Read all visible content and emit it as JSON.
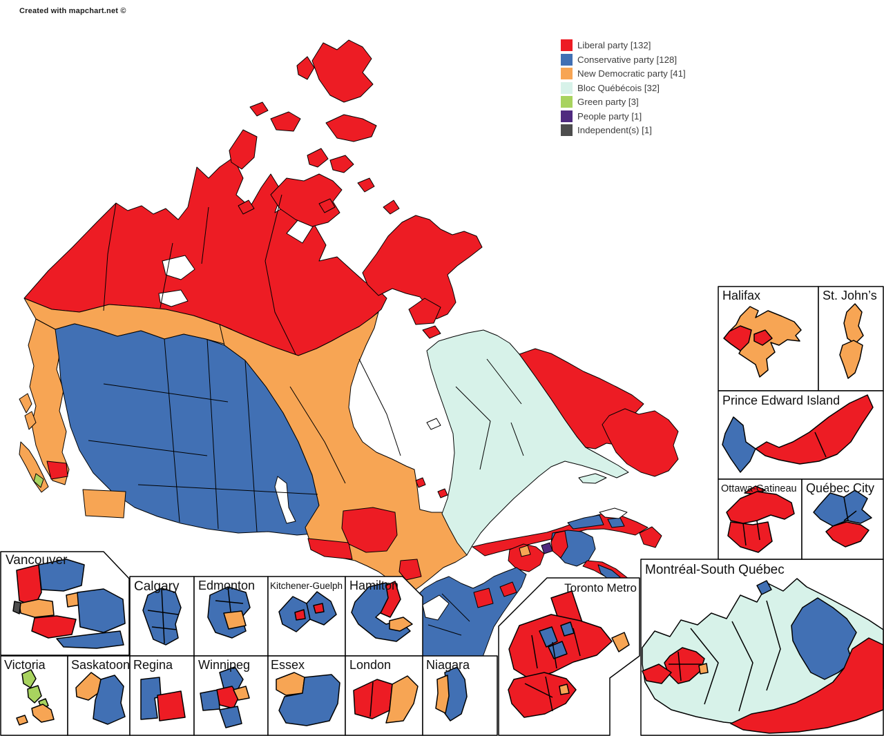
{
  "credit": "Created with mapchart.net ©",
  "legend": {
    "items": [
      {
        "id": "liberal",
        "label": "Liberal party [132]",
        "color": "#ed1c24"
      },
      {
        "id": "conservative",
        "label": "Conservative party [128]",
        "color": "#4170b4"
      },
      {
        "id": "ndp",
        "label": "New Democratic party [41]",
        "color": "#f7a554"
      },
      {
        "id": "bloc",
        "label": "Bloc Québécois [32]",
        "color": "#d7f2e9"
      },
      {
        "id": "green",
        "label": "Green party [3]",
        "color": "#a8d35f"
      },
      {
        "id": "people",
        "label": "People party [1]",
        "color": "#4f2a7f"
      },
      {
        "id": "independent",
        "label": "Independent(s) [1]",
        "color": "#4d4d4d"
      }
    ]
  },
  "insets": {
    "halifax": {
      "label": "Halifax"
    },
    "st_johns": {
      "label": "St. John’s"
    },
    "pei": {
      "label": "Prince Edward Island"
    },
    "ottawa_gatineau": {
      "label": "Ottawa-Gatineau"
    },
    "quebec_city": {
      "label": "Québec City"
    },
    "montreal": {
      "label": "Montréal-South Québec"
    },
    "vancouver": {
      "label": "Vancouver"
    },
    "calgary": {
      "label": "Calgary"
    },
    "edmonton": {
      "label": "Edmonton"
    },
    "kitchener_guelph": {
      "label": "Kitchener-Guelph"
    },
    "hamilton": {
      "label": "Hamilton"
    },
    "victoria": {
      "label": "Victoria"
    },
    "saskatoon": {
      "label": "Saskatoon"
    },
    "regina": {
      "label": "Regina"
    },
    "winnipeg": {
      "label": "Winnipeg"
    },
    "essex": {
      "label": "Essex"
    },
    "london": {
      "label": "London"
    },
    "niagara": {
      "label": "Niagara"
    },
    "toronto": {
      "label": "Toronto Metro"
    }
  }
}
